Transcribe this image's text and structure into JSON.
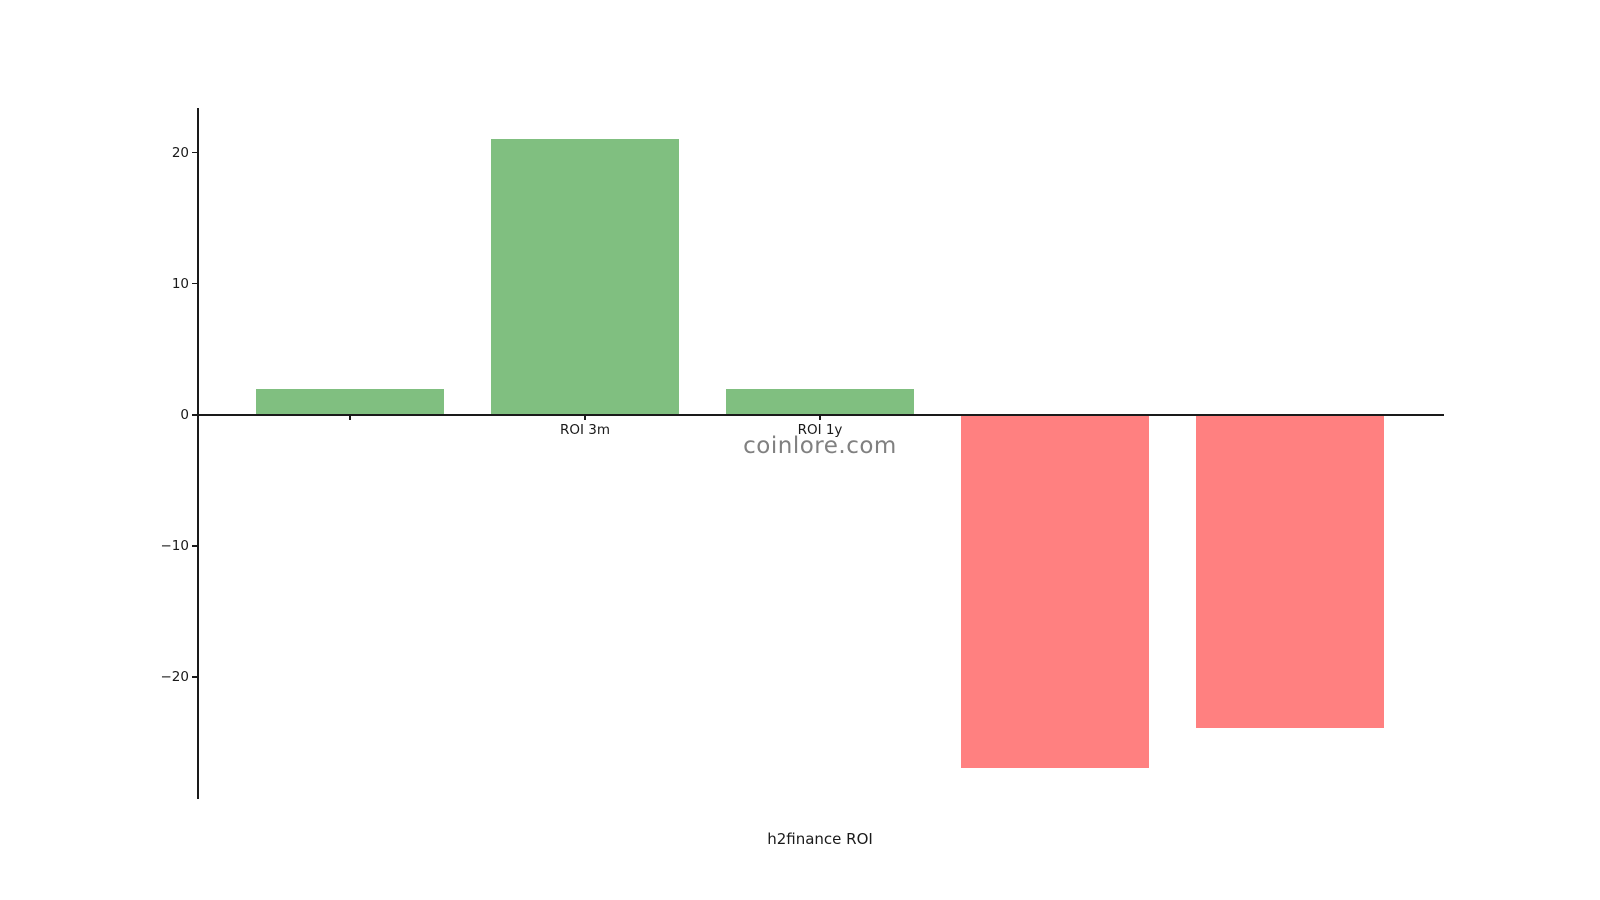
{
  "page": {
    "background_color": "#ffffff"
  },
  "chart_data": {
    "type": "bar",
    "title": "h2finance ROI",
    "watermark": "coinlore.com",
    "categories": [
      "",
      "ROI 3m",
      "ROI 1y",
      "",
      ""
    ],
    "values": [
      2,
      21,
      2,
      -26.9,
      -23.9
    ],
    "series": [
      {
        "name": "h2finance ROI",
        "values": [
          2,
          21,
          2,
          -26.9,
          -23.9
        ]
      }
    ],
    "ytick_values": [
      20,
      10,
      0,
      -10,
      -20
    ],
    "ytick_labels": [
      "20",
      "10",
      "0",
      "−10",
      "−20"
    ],
    "ylim": [
      -29.3,
      23.4
    ],
    "grid": false,
    "legend_position": "none",
    "xlabel": "h2finance ROI",
    "ylabel": "",
    "colors": {
      "positive_bar": "#80bf80",
      "negative_bar": "#ff8080",
      "axis": "#1a1a1a",
      "text": "#1a1a1a",
      "watermark": "#808080"
    }
  }
}
